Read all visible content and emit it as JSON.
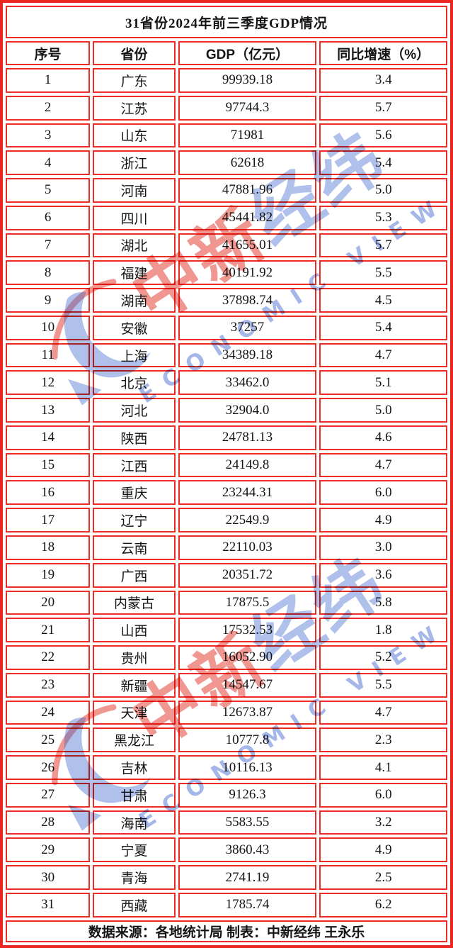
{
  "chart_data": {
    "type": "table",
    "title": "31省份2024年前三季度GDP情况",
    "columns": [
      "序号",
      "省份",
      "GDP（亿元）",
      "同比增速（%）"
    ],
    "rows": [
      [
        "1",
        "广东",
        "99939.18",
        "3.4"
      ],
      [
        "2",
        "江苏",
        "97744.3",
        "5.7"
      ],
      [
        "3",
        "山东",
        "71981",
        "5.6"
      ],
      [
        "4",
        "浙江",
        "62618",
        "5.4"
      ],
      [
        "5",
        "河南",
        "47881.96",
        "5.0"
      ],
      [
        "6",
        "四川",
        "45441.82",
        "5.3"
      ],
      [
        "7",
        "湖北",
        "41655.01",
        "5.7"
      ],
      [
        "8",
        "福建",
        "40191.92",
        "5.5"
      ],
      [
        "9",
        "湖南",
        "37898.74",
        "4.5"
      ],
      [
        "10",
        "安徽",
        "37257",
        "5.4"
      ],
      [
        "11",
        "上海",
        "34389.18",
        "4.7"
      ],
      [
        "12",
        "北京",
        "33462.0",
        "5.1"
      ],
      [
        "13",
        "河北",
        "32904.0",
        "5.0"
      ],
      [
        "14",
        "陕西",
        "24781.13",
        "4.6"
      ],
      [
        "15",
        "江西",
        "24149.8",
        "4.7"
      ],
      [
        "16",
        "重庆",
        "23244.31",
        "6.0"
      ],
      [
        "17",
        "辽宁",
        "22549.9",
        "4.9"
      ],
      [
        "18",
        "云南",
        "22110.03",
        "3.0"
      ],
      [
        "19",
        "广西",
        "20351.72",
        "3.6"
      ],
      [
        "20",
        "内蒙古",
        "17875.5",
        "5.8"
      ],
      [
        "21",
        "山西",
        "17532.53",
        "1.8"
      ],
      [
        "22",
        "贵州",
        "16052.90",
        "5.2"
      ],
      [
        "23",
        "新疆",
        "14547.67",
        "5.5"
      ],
      [
        "24",
        "天津",
        "12673.87",
        "4.7"
      ],
      [
        "25",
        "黑龙江",
        "10777.8",
        "2.3"
      ],
      [
        "26",
        "吉林",
        "10116.13",
        "4.1"
      ],
      [
        "27",
        "甘肃",
        "9126.3",
        "6.0"
      ],
      [
        "28",
        "海南",
        "5583.55",
        "3.2"
      ],
      [
        "29",
        "宁夏",
        "3860.43",
        "4.9"
      ],
      [
        "30",
        "青海",
        "2741.19",
        "2.5"
      ],
      [
        "31",
        "西藏",
        "1785.74",
        "6.2"
      ]
    ],
    "footnote": "数据来源：各地统计局 制表：中新经纬 王永乐",
    "layout_hints": {
      "grid": "red bordered cells",
      "row_count": 31
    }
  },
  "watermark": {
    "cn_red": "中新",
    "cn_blue": "经纬",
    "en": "ECONOMIC VIEW"
  },
  "colors": {
    "border_red": "#ee2b25",
    "outer_frame_red": "#ec2722",
    "text_black": "#141414",
    "watermark_red": "rgba(224,48,34,0.50)",
    "watermark_blue": "rgba(64,105,206,0.45)",
    "cell_background": "#ffffff"
  }
}
